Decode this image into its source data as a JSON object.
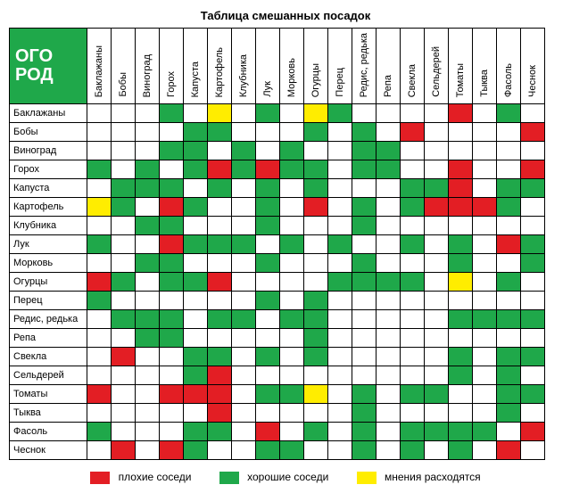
{
  "title": "Таблица смешанных посадок",
  "logo_line1": "ОГО",
  "logo_line2": "РОД",
  "logo_bg": "#1fa84a",
  "colors": {
    "good": "#1fa84a",
    "bad": "#e31e24",
    "mixed": "#ffed00",
    "blank": "#ffffff",
    "border": "#000000"
  },
  "legend": {
    "bad": "плохие соседи",
    "good": "хорошие соседи",
    "mixed": "мнения расходятся"
  },
  "plants": [
    "Баклажаны",
    "Бобы",
    "Виноград",
    "Горох",
    "Капуста",
    "Картофель",
    "Клубника",
    "Лук",
    "Морковь",
    "Огурцы",
    "Перец",
    "Редис, редька",
    "Репа",
    "Свекла",
    "Сельдерей",
    "Томаты",
    "Тыква",
    "Фасоль",
    "Чеснок"
  ],
  "matrix": [
    [
      "",
      "",
      "",
      "g",
      "",
      "b",
      "",
      "g",
      "",
      "b",
      "g",
      "",
      "",
      "",
      "",
      "r",
      "",
      "g",
      ""
    ],
    [
      "",
      "",
      "",
      "",
      "g",
      "g",
      "",
      "",
      "",
      "g",
      "",
      "g",
      "",
      "r",
      "",
      "",
      "",
      "",
      "r"
    ],
    [
      "",
      "",
      "",
      "g",
      "g",
      "",
      "g",
      "",
      "g",
      "",
      "",
      "g",
      "g",
      "",
      "",
      "",
      "",
      "",
      ""
    ],
    [
      "g",
      "",
      "g",
      "",
      "g",
      "r",
      "g",
      "r",
      "g",
      "g",
      "",
      "g",
      "g",
      "",
      "",
      "r",
      "",
      "",
      "r"
    ],
    [
      "",
      "g",
      "g",
      "g",
      "",
      "g",
      "",
      "g",
      "",
      "g",
      "",
      "",
      "",
      "g",
      "g",
      "r",
      "",
      "g",
      "g"
    ],
    [
      "b",
      "g",
      "",
      "r",
      "g",
      "",
      "",
      "g",
      "",
      "r",
      "",
      "g",
      "",
      "g",
      "r",
      "r",
      "r",
      "g",
      ""
    ],
    [
      "",
      "",
      "g",
      "g",
      "",
      "",
      "",
      "g",
      "",
      "",
      "",
      "g",
      "",
      "",
      "",
      "",
      "",
      "",
      ""
    ],
    [
      "g",
      "",
      "",
      "r",
      "g",
      "g",
      "g",
      "",
      "g",
      "",
      "g",
      "",
      "",
      "g",
      "",
      "g",
      "",
      "r",
      "g"
    ],
    [
      "",
      "",
      "g",
      "g",
      "",
      "",
      "",
      "g",
      "",
      "",
      "",
      "g",
      "",
      "",
      "",
      "g",
      "",
      "",
      "g"
    ],
    [
      "r",
      "g",
      "",
      "g",
      "g",
      "r",
      "",
      "",
      "",
      "",
      "g",
      "g",
      "g",
      "g",
      "",
      "b",
      "",
      "g",
      ""
    ],
    [
      "g",
      "",
      "",
      "",
      "",
      "",
      "",
      "g",
      "",
      "g",
      "",
      "",
      "",
      "",
      "",
      "",
      "",
      "",
      ""
    ],
    [
      "",
      "g",
      "g",
      "g",
      "",
      "g",
      "g",
      "",
      "g",
      "g",
      "",
      "",
      "",
      "",
      "",
      "g",
      "g",
      "g",
      "g"
    ],
    [
      "",
      "",
      "g",
      "g",
      "",
      "",
      "",
      "",
      "",
      "g",
      "",
      "",
      "",
      "",
      "",
      "",
      "",
      "",
      ""
    ],
    [
      "",
      "r",
      "",
      "",
      "g",
      "g",
      "",
      "g",
      "",
      "g",
      "",
      "",
      "",
      "",
      "",
      "g",
      "",
      "g",
      "g"
    ],
    [
      "",
      "",
      "",
      "",
      "g",
      "r",
      "",
      "",
      "",
      "",
      "",
      "",
      "",
      "",
      "",
      "g",
      "",
      "g",
      ""
    ],
    [
      "r",
      "",
      "",
      "r",
      "r",
      "r",
      "",
      "g",
      "g",
      "b",
      "",
      "g",
      "",
      "g",
      "g",
      "",
      "",
      "g",
      "g"
    ],
    [
      "",
      "",
      "",
      "",
      "",
      "r",
      "",
      "",
      "",
      "",
      "",
      "g",
      "",
      "",
      "",
      "",
      "",
      "g",
      ""
    ],
    [
      "g",
      "",
      "",
      "",
      "g",
      "g",
      "",
      "r",
      "",
      "g",
      "",
      "g",
      "",
      "g",
      "g",
      "g",
      "g",
      "",
      "r"
    ],
    [
      "",
      "r",
      "",
      "r",
      "g",
      "",
      "",
      "g",
      "g",
      "",
      "",
      "g",
      "",
      "g",
      "",
      "g",
      "",
      "r",
      ""
    ]
  ]
}
